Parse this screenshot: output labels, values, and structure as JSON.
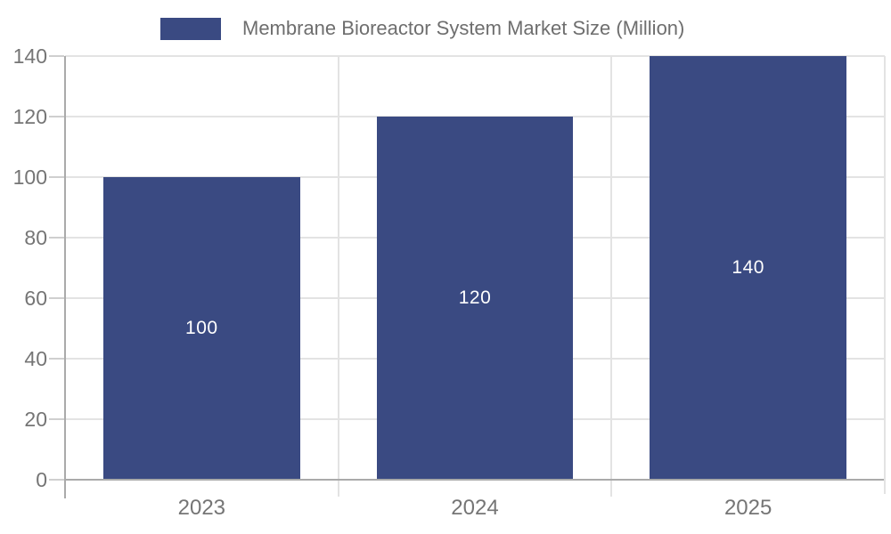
{
  "chart_data": {
    "type": "bar",
    "title": "",
    "series_name": "Membrane Bioreactor System Market Size (Million)",
    "categories": [
      "2023",
      "2024",
      "2025"
    ],
    "values": [
      100,
      120,
      140
    ],
    "data_labels": [
      "100",
      "120",
      "140"
    ],
    "xlabel": "",
    "ylabel": "",
    "ylim": [
      0,
      140
    ],
    "yticks": [
      0,
      20,
      40,
      60,
      80,
      100,
      120,
      140
    ],
    "grid": true,
    "legend_position": "top",
    "bar_color": "#3a4a82",
    "bar_width_fraction": 0.72
  },
  "legend": {
    "label": "Membrane Bioreactor System Market Size (Million)",
    "swatch_color": "#3a4a82"
  },
  "colors": {
    "bar": "#3a4a82",
    "grid_line": "#e3e3e3",
    "axis_line": "#aaaaaa",
    "tick_mark": "#cfcfcf",
    "tick_text": "#757575",
    "legend_text": "#6e6e6e",
    "data_label_text": "#ffffff",
    "background": "#ffffff"
  }
}
